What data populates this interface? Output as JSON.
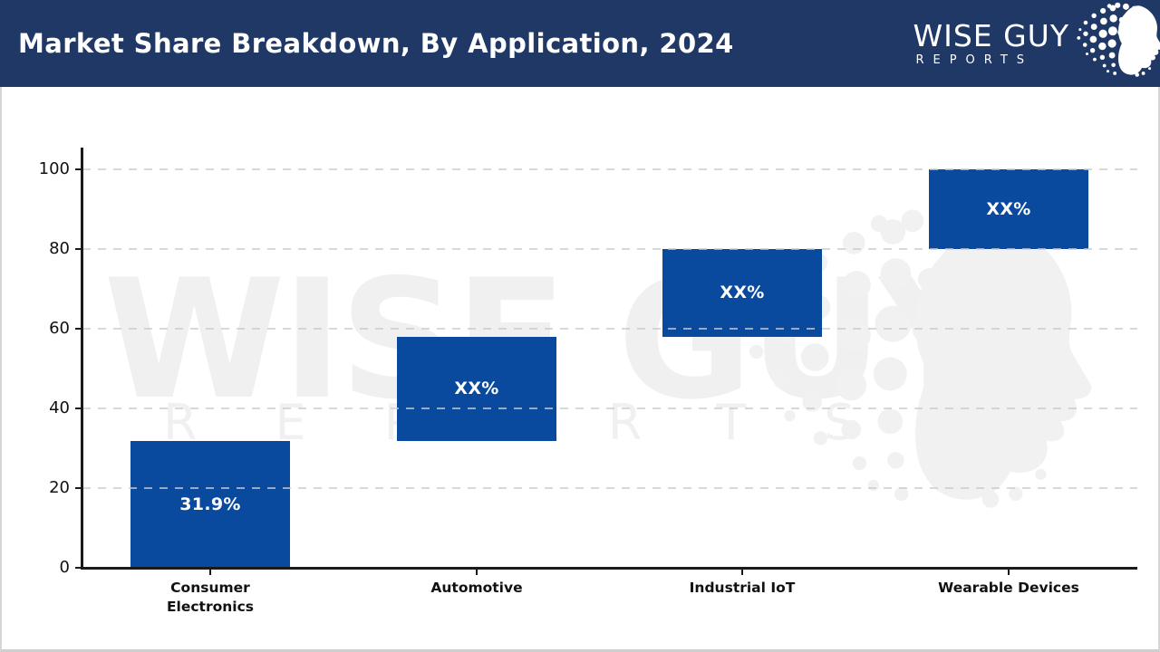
{
  "header": {
    "title": "Market Share Breakdown, By Application, 2024",
    "logo": {
      "wordmark": "WISE GUY",
      "subtitle": "REPORTS"
    }
  },
  "watermark": {
    "wordmark": "WISE GUY",
    "subtitle": "REPORTS"
  },
  "chart_data": {
    "type": "bar",
    "subtype": "waterfall",
    "title": "Market Share Breakdown, By Application, 2024",
    "categories": [
      "Consumer Electronics",
      "Automotive",
      "Industrial IoT",
      "Wearable Devices"
    ],
    "category_lines": [
      [
        "Consumer",
        "Electronics"
      ],
      [
        "Automotive"
      ],
      [
        "Industrial IoT"
      ],
      [
        "Wearable Devices"
      ]
    ],
    "segments": [
      {
        "category": "Consumer Electronics",
        "start": 0,
        "end": 31.9,
        "label": "31.9%"
      },
      {
        "category": "Automotive",
        "start": 31.9,
        "end": 58,
        "label": "XX%"
      },
      {
        "category": "Industrial IoT",
        "start": 58,
        "end": 80,
        "label": "XX%"
      },
      {
        "category": "Wearable Devices",
        "start": 80,
        "end": 100,
        "label": "XX%"
      }
    ],
    "yticks": [
      0,
      20,
      40,
      60,
      80,
      100
    ],
    "ylim": [
      0,
      100
    ],
    "xlabel": "",
    "ylabel": "",
    "grid": "horizontal-dashed",
    "legend": "none"
  },
  "colors": {
    "header_bg": "#1f3866",
    "bar": "#09499e",
    "bar_label": "#ffffff",
    "axis": "#1a1a1a",
    "grid": "#d9d9d9",
    "watermark": "#f0f0f0"
  }
}
